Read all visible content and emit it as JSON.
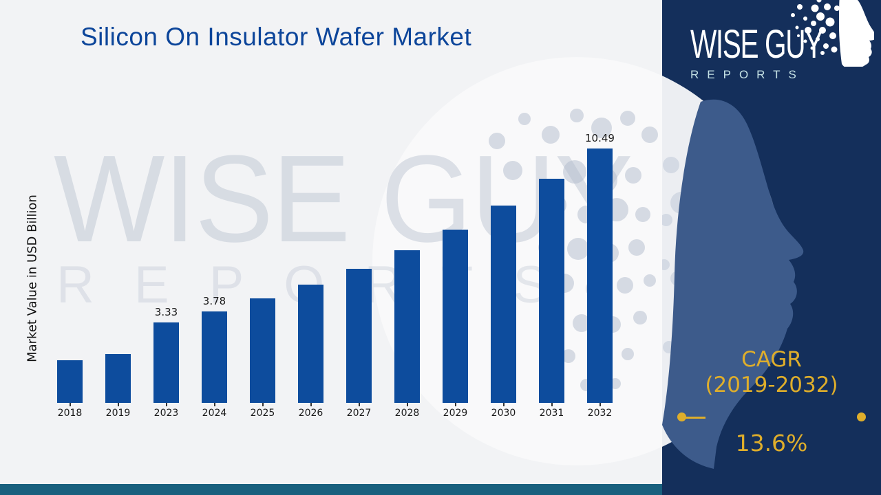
{
  "title": "Silicon On Insulator Wafer Market",
  "watermark": {
    "line1": "WISE GUY",
    "line2": "REPORTS"
  },
  "panel": {
    "logo": {
      "name": "WISE GUY",
      "sub": "REPORTS"
    },
    "cagr": {
      "label": "CAGR",
      "range": "(2019-2032)",
      "value": "13.6%"
    }
  },
  "colors": {
    "background": "#f2f3f5",
    "bar": "#0d4c9d",
    "title": "#0c459a",
    "panel_bg": "#142f5b",
    "gold": "#dfae2b",
    "teal_strip": "#19607e",
    "logo_text": "#ffffff",
    "logo_sub": "#c5e2e5",
    "face_silhouette": "#3d5b8b"
  },
  "chart_data": {
    "type": "bar",
    "title": "Silicon On Insulator Wafer Market",
    "xlabel": "",
    "ylabel": "Market Value in USD Billion",
    "categories": [
      "2018",
      "2019",
      "2023",
      "2024",
      "2025",
      "2026",
      "2027",
      "2028",
      "2029",
      "2030",
      "2031",
      "2032"
    ],
    "values": [
      1.76,
      2.0,
      3.33,
      3.78,
      4.3,
      4.88,
      5.54,
      6.3,
      7.15,
      8.13,
      9.23,
      10.49
    ],
    "bar_labels": [
      "",
      "",
      "3.33",
      "3.78",
      "",
      "",
      "",
      "",
      "",
      "",
      "",
      "10.49"
    ],
    "ylim": [
      0,
      11
    ],
    "grid": false,
    "legend": null,
    "annotation": "CAGR (2019-2032) 13.6%"
  }
}
